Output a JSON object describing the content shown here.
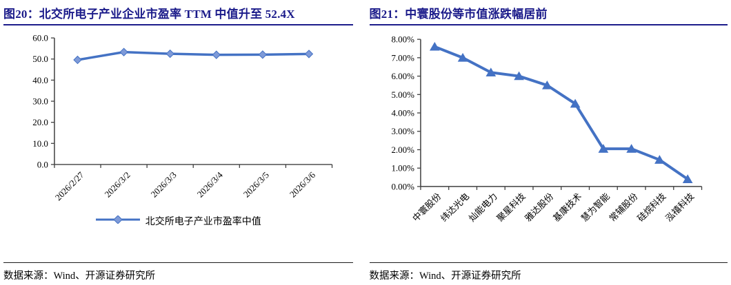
{
  "accent_color": "#4472C4",
  "marker_fill_color": "#7E9AD8",
  "title_color": "#1b1b8a",
  "figure20": {
    "title": "图20：北交所电子产业企业市盈率 TTM 中值升至 52.4X",
    "legend": "北交所电子产业市盈率中值",
    "source": "数据来源：Wind、开源证券研究所"
  },
  "figure21": {
    "title": "图21：中寰股份等市值涨跌幅居前",
    "source": "数据来源：Wind、开源证券研究所"
  },
  "chart_data": [
    {
      "id": "chart20",
      "type": "line",
      "title": "北交所电子产业企业市盈率TTM中值升至52.4X",
      "categories": [
        "2026/2/27",
        "2026/3/2",
        "2026/3/3",
        "2026/3/4",
        "2026/3/5",
        "2026/3/6"
      ],
      "series": [
        {
          "name": "北交所电子产业市盈率中值",
          "values": [
            49.6,
            53.3,
            52.5,
            52.0,
            52.1,
            52.4
          ]
        }
      ],
      "xlabel": "",
      "ylabel": "",
      "ylim": [
        0,
        60
      ],
      "ytick_step": 10,
      "ytick_labels": [
        "0.0",
        "10.0",
        "20.0",
        "30.0",
        "40.0",
        "50.0",
        "60.0"
      ],
      "marker": "diamond",
      "grid": false,
      "legend_position": "bottom"
    },
    {
      "id": "chart21",
      "type": "line",
      "title": "中寰股份等市值涨跌幅居前",
      "categories": [
        "中寰股份",
        "纬达光电",
        "灿能电力",
        "聚星科技",
        "雅达股份",
        "基康技术",
        "慧为智能",
        "常辅股份",
        "硅烷科技",
        "泓禧科技"
      ],
      "series": [
        {
          "name": "市值涨跌幅",
          "values": [
            7.6,
            7.0,
            6.2,
            6.0,
            5.5,
            4.5,
            2.05,
            2.05,
            1.45,
            0.4
          ]
        }
      ],
      "xlabel": "",
      "ylabel": "",
      "ylim": [
        0,
        8
      ],
      "ytick_step": 1,
      "ytick_labels": [
        "0.00%",
        "1.00%",
        "2.00%",
        "3.00%",
        "4.00%",
        "5.00%",
        "6.00%",
        "7.00%",
        "8.00%"
      ],
      "marker": "triangle",
      "grid": false,
      "legend_position": "none"
    }
  ]
}
